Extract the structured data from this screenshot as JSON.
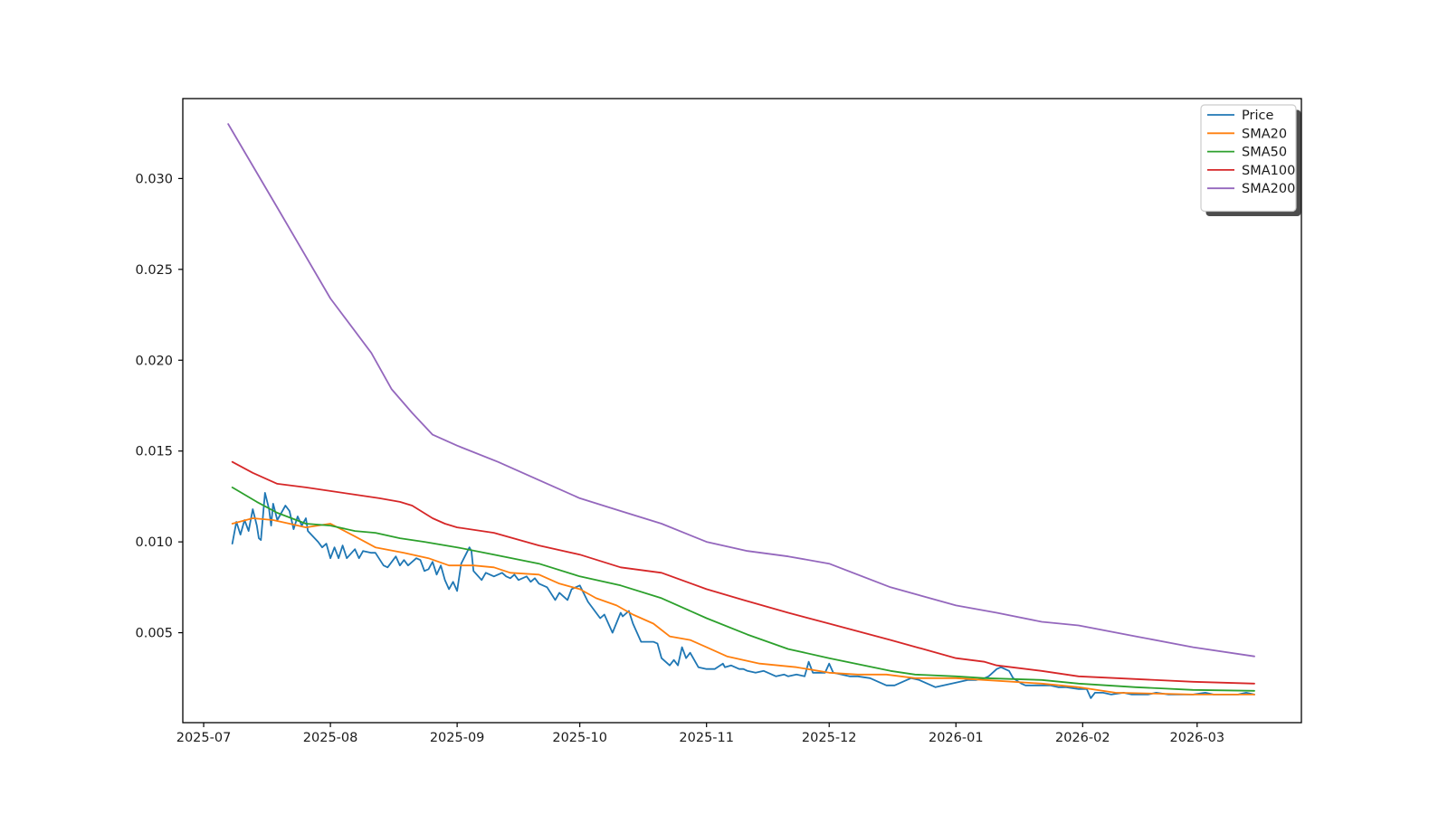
{
  "figure": {
    "background": "#ffffff",
    "border_color": "#000000"
  },
  "axes": {
    "xlim_days": [
      -5.1,
      268.5
    ],
    "ylim": [
      5e-05,
      0.0344
    ],
    "x_unit": "days since 2025-07-01",
    "xticks": [
      {
        "d": 0,
        "label": "2025-07"
      },
      {
        "d": 31,
        "label": "2025-08"
      },
      {
        "d": 62,
        "label": "2025-09"
      },
      {
        "d": 92,
        "label": "2025-10"
      },
      {
        "d": 123,
        "label": "2025-11"
      },
      {
        "d": 153,
        "label": "2025-12"
      },
      {
        "d": 184,
        "label": "2026-01"
      },
      {
        "d": 215,
        "label": "2026-02"
      },
      {
        "d": 243,
        "label": "2026-03"
      }
    ],
    "yticks": [
      {
        "v": 0.005,
        "label": "0.005"
      },
      {
        "v": 0.01,
        "label": "0.010"
      },
      {
        "v": 0.015,
        "label": "0.015"
      },
      {
        "v": 0.02,
        "label": "0.020"
      },
      {
        "v": 0.025,
        "label": "0.025"
      },
      {
        "v": 0.03,
        "label": "0.030"
      }
    ]
  },
  "legend": {
    "position": "upper right",
    "shadow_color": "#4d4d4d",
    "border_color": "#cccccc",
    "background": "#ffffff"
  },
  "chart_data": {
    "type": "line",
    "title": "",
    "xlabel": "",
    "ylabel": "",
    "grid": false,
    "legend_position": "upper right",
    "x_unit": "days since 2025-07-01",
    "x_tick_labels": [
      "2025-07",
      "2025-08",
      "2025-09",
      "2025-10",
      "2025-11",
      "2025-12",
      "2026-01",
      "2026-02",
      "2026-03"
    ],
    "ylim": [
      5e-05,
      0.0344
    ],
    "series": [
      {
        "name": "Price",
        "color": "#1f77b4",
        "points": [
          [
            7,
            0.0099
          ],
          [
            8,
            0.0111
          ],
          [
            9,
            0.0104
          ],
          [
            10,
            0.0112
          ],
          [
            11,
            0.0106
          ],
          [
            12,
            0.0118
          ],
          [
            13,
            0.0109
          ],
          [
            13.5,
            0.0102
          ],
          [
            14,
            0.0101
          ],
          [
            15,
            0.0127
          ],
          [
            16,
            0.0118
          ],
          [
            16.5,
            0.0109
          ],
          [
            17,
            0.0121
          ],
          [
            18,
            0.0112
          ],
          [
            20,
            0.012
          ],
          [
            21,
            0.0117
          ],
          [
            22,
            0.0107
          ],
          [
            23,
            0.0114
          ],
          [
            24,
            0.0109
          ],
          [
            25,
            0.0113
          ],
          [
            25.5,
            0.0106
          ],
          [
            28,
            0.01
          ],
          [
            29,
            0.0097
          ],
          [
            30,
            0.0099
          ],
          [
            31,
            0.0091
          ],
          [
            32,
            0.0097
          ],
          [
            33,
            0.0091
          ],
          [
            34,
            0.0098
          ],
          [
            35,
            0.0091
          ],
          [
            37,
            0.0096
          ],
          [
            38,
            0.0091
          ],
          [
            39,
            0.0095
          ],
          [
            41,
            0.0094
          ],
          [
            42,
            0.0094
          ],
          [
            44,
            0.0087
          ],
          [
            45,
            0.0086
          ],
          [
            47,
            0.0092
          ],
          [
            48,
            0.0087
          ],
          [
            49,
            0.009
          ],
          [
            50,
            0.0087
          ],
          [
            52,
            0.0091
          ],
          [
            53,
            0.009
          ],
          [
            54,
            0.0084
          ],
          [
            55,
            0.0085
          ],
          [
            56,
            0.0089
          ],
          [
            57,
            0.0082
          ],
          [
            58,
            0.0087
          ],
          [
            59,
            0.0079
          ],
          [
            60,
            0.0074
          ],
          [
            61,
            0.0078
          ],
          [
            62,
            0.0073
          ],
          [
            63,
            0.0088
          ],
          [
            65,
            0.0097
          ],
          [
            65.5,
            0.0095
          ],
          [
            66,
            0.0084
          ],
          [
            68,
            0.0079
          ],
          [
            69,
            0.0083
          ],
          [
            71,
            0.0081
          ],
          [
            73,
            0.0083
          ],
          [
            74,
            0.0081
          ],
          [
            75,
            0.008
          ],
          [
            76,
            0.0082
          ],
          [
            77,
            0.0079
          ],
          [
            79,
            0.0081
          ],
          [
            80,
            0.0078
          ],
          [
            81,
            0.008
          ],
          [
            82,
            0.0077
          ],
          [
            84,
            0.0075
          ],
          [
            86,
            0.0068
          ],
          [
            87,
            0.0072
          ],
          [
            89,
            0.0068
          ],
          [
            90,
            0.0074
          ],
          [
            92,
            0.0076
          ],
          [
            94,
            0.0067
          ],
          [
            96,
            0.0061
          ],
          [
            97,
            0.0058
          ],
          [
            98,
            0.006
          ],
          [
            100,
            0.005
          ],
          [
            102,
            0.0061
          ],
          [
            102.5,
            0.0059
          ],
          [
            104,
            0.0062
          ],
          [
            105,
            0.0055
          ],
          [
            107,
            0.0045
          ],
          [
            109,
            0.0045
          ],
          [
            110,
            0.0045
          ],
          [
            111,
            0.0044
          ],
          [
            112,
            0.0036
          ],
          [
            114,
            0.0032
          ],
          [
            115,
            0.0035
          ],
          [
            116,
            0.0032
          ],
          [
            117,
            0.0042
          ],
          [
            118,
            0.0036
          ],
          [
            119,
            0.0039
          ],
          [
            121,
            0.0031
          ],
          [
            123,
            0.003
          ],
          [
            125,
            0.003
          ],
          [
            127,
            0.0033
          ],
          [
            127.5,
            0.0031
          ],
          [
            129,
            0.0032
          ],
          [
            131,
            0.003
          ],
          [
            132,
            0.003
          ],
          [
            133,
            0.0029
          ],
          [
            135,
            0.0028
          ],
          [
            137,
            0.0029
          ],
          [
            138,
            0.0028
          ],
          [
            140,
            0.0026
          ],
          [
            142,
            0.0027
          ],
          [
            143,
            0.0026
          ],
          [
            145,
            0.0027
          ],
          [
            147,
            0.0026
          ],
          [
            148,
            0.0034
          ],
          [
            149,
            0.0028
          ],
          [
            150,
            0.0028
          ],
          [
            152,
            0.0028
          ],
          [
            153,
            0.0033
          ],
          [
            154,
            0.0028
          ],
          [
            156,
            0.0027
          ],
          [
            158,
            0.0026
          ],
          [
            160,
            0.0026
          ],
          [
            163,
            0.0025
          ],
          [
            165,
            0.0023
          ],
          [
            167,
            0.0021
          ],
          [
            169,
            0.0021
          ],
          [
            171,
            0.0023
          ],
          [
            173,
            0.0025
          ],
          [
            175,
            0.0024
          ],
          [
            177,
            0.0022
          ],
          [
            179,
            0.002
          ],
          [
            181,
            0.0021
          ],
          [
            183,
            0.0022
          ],
          [
            185,
            0.0023
          ],
          [
            187,
            0.0024
          ],
          [
            189,
            0.0024
          ],
          [
            191,
            0.0025
          ],
          [
            192,
            0.0026
          ],
          [
            194,
            0.003
          ],
          [
            195,
            0.0031
          ],
          [
            197,
            0.0029
          ],
          [
            198,
            0.0025
          ],
          [
            200,
            0.0022
          ],
          [
            201,
            0.0021
          ],
          [
            203,
            0.0021
          ],
          [
            205,
            0.0021
          ],
          [
            207,
            0.0021
          ],
          [
            209,
            0.002
          ],
          [
            211,
            0.002
          ],
          [
            214,
            0.0019
          ],
          [
            216,
            0.0019
          ],
          [
            217,
            0.0014
          ],
          [
            218,
            0.0017
          ],
          [
            220,
            0.0017
          ],
          [
            222,
            0.0016
          ],
          [
            225,
            0.0017
          ],
          [
            227,
            0.0016
          ],
          [
            229,
            0.0016
          ],
          [
            231,
            0.0016
          ],
          [
            233,
            0.0017
          ],
          [
            236,
            0.0016
          ],
          [
            238,
            0.0016
          ],
          [
            240,
            0.0016
          ],
          [
            242,
            0.0016
          ],
          [
            245,
            0.0017
          ],
          [
            247,
            0.0016
          ],
          [
            249,
            0.0016
          ],
          [
            251,
            0.0016
          ],
          [
            253,
            0.0016
          ],
          [
            255,
            0.0017
          ],
          [
            257,
            0.0016
          ]
        ]
      },
      {
        "name": "SMA20",
        "color": "#ff7f0e",
        "points": [
          [
            7,
            0.011
          ],
          [
            12,
            0.0113
          ],
          [
            17,
            0.0112
          ],
          [
            21,
            0.011
          ],
          [
            25,
            0.0108
          ],
          [
            31,
            0.011
          ],
          [
            37,
            0.0103
          ],
          [
            42,
            0.0097
          ],
          [
            49,
            0.0094
          ],
          [
            55,
            0.0091
          ],
          [
            60,
            0.0087
          ],
          [
            62,
            0.0087
          ],
          [
            66,
            0.0087
          ],
          [
            71,
            0.0086
          ],
          [
            75,
            0.0083
          ],
          [
            82,
            0.0082
          ],
          [
            87,
            0.0077
          ],
          [
            92,
            0.0074
          ],
          [
            96,
            0.0069
          ],
          [
            101,
            0.0065
          ],
          [
            105,
            0.006
          ],
          [
            110,
            0.0055
          ],
          [
            114,
            0.0048
          ],
          [
            119,
            0.0046
          ],
          [
            123,
            0.0042
          ],
          [
            128,
            0.0037
          ],
          [
            136,
            0.0033
          ],
          [
            145,
            0.0031
          ],
          [
            153,
            0.0028
          ],
          [
            160,
            0.0027
          ],
          [
            167,
            0.0027
          ],
          [
            174,
            0.0025
          ],
          [
            184,
            0.0025
          ],
          [
            191,
            0.0024
          ],
          [
            205,
            0.0022
          ],
          [
            214,
            0.002
          ],
          [
            223,
            0.0017
          ],
          [
            233,
            0.00165
          ],
          [
            242,
            0.0016
          ],
          [
            257,
            0.0016
          ]
        ]
      },
      {
        "name": "SMA50",
        "color": "#2ca02c",
        "points": [
          [
            7,
            0.013
          ],
          [
            13,
            0.0122
          ],
          [
            18,
            0.0116
          ],
          [
            25,
            0.011
          ],
          [
            31,
            0.0109
          ],
          [
            37,
            0.0106
          ],
          [
            42,
            0.0105
          ],
          [
            48,
            0.0102
          ],
          [
            54,
            0.01
          ],
          [
            62,
            0.0097
          ],
          [
            71,
            0.0093
          ],
          [
            82,
            0.0088
          ],
          [
            92,
            0.0081
          ],
          [
            102,
            0.0076
          ],
          [
            112,
            0.0069
          ],
          [
            123,
            0.0058
          ],
          [
            133,
            0.0049
          ],
          [
            143,
            0.0041
          ],
          [
            153,
            0.0036
          ],
          [
            168,
            0.0029
          ],
          [
            174,
            0.0027
          ],
          [
            184,
            0.0026
          ],
          [
            191,
            0.0025
          ],
          [
            205,
            0.0024
          ],
          [
            214,
            0.0022
          ],
          [
            228,
            0.002
          ],
          [
            242,
            0.00185
          ],
          [
            257,
            0.0018
          ]
        ]
      },
      {
        "name": "SMA100",
        "color": "#d62728",
        "points": [
          [
            7,
            0.0144
          ],
          [
            12,
            0.0138
          ],
          [
            18,
            0.0132
          ],
          [
            25,
            0.013
          ],
          [
            31,
            0.0128
          ],
          [
            37,
            0.0126
          ],
          [
            43,
            0.0124
          ],
          [
            48,
            0.0122
          ],
          [
            51,
            0.012
          ],
          [
            56,
            0.0113
          ],
          [
            59,
            0.011
          ],
          [
            62,
            0.0108
          ],
          [
            71,
            0.0105
          ],
          [
            82,
            0.0098
          ],
          [
            92,
            0.0093
          ],
          [
            102,
            0.0086
          ],
          [
            112,
            0.0083
          ],
          [
            123,
            0.0074
          ],
          [
            132,
            0.0068
          ],
          [
            143,
            0.0061
          ],
          [
            153,
            0.0055
          ],
          [
            168,
            0.0046
          ],
          [
            184,
            0.0036
          ],
          [
            191,
            0.0034
          ],
          [
            194,
            0.0032
          ],
          [
            205,
            0.0029
          ],
          [
            214,
            0.0026
          ],
          [
            228,
            0.00245
          ],
          [
            242,
            0.0023
          ],
          [
            257,
            0.0022
          ]
        ]
      },
      {
        "name": "SMA200",
        "color": "#9467bd",
        "points": [
          [
            6,
            0.033
          ],
          [
            18,
            0.0284
          ],
          [
            31,
            0.0234
          ],
          [
            41,
            0.0204
          ],
          [
            46,
            0.0184
          ],
          [
            51,
            0.0171
          ],
          [
            56,
            0.0159
          ],
          [
            62,
            0.0153
          ],
          [
            72,
            0.0144
          ],
          [
            82,
            0.0134
          ],
          [
            92,
            0.0124
          ],
          [
            102,
            0.0117
          ],
          [
            112,
            0.011
          ],
          [
            123,
            0.01
          ],
          [
            133,
            0.0095
          ],
          [
            143,
            0.0092
          ],
          [
            153,
            0.0088
          ],
          [
            168,
            0.0075
          ],
          [
            184,
            0.0065
          ],
          [
            194,
            0.0061
          ],
          [
            205,
            0.0056
          ],
          [
            214,
            0.0054
          ],
          [
            228,
            0.0048
          ],
          [
            242,
            0.0042
          ],
          [
            257,
            0.0037
          ]
        ]
      }
    ]
  }
}
